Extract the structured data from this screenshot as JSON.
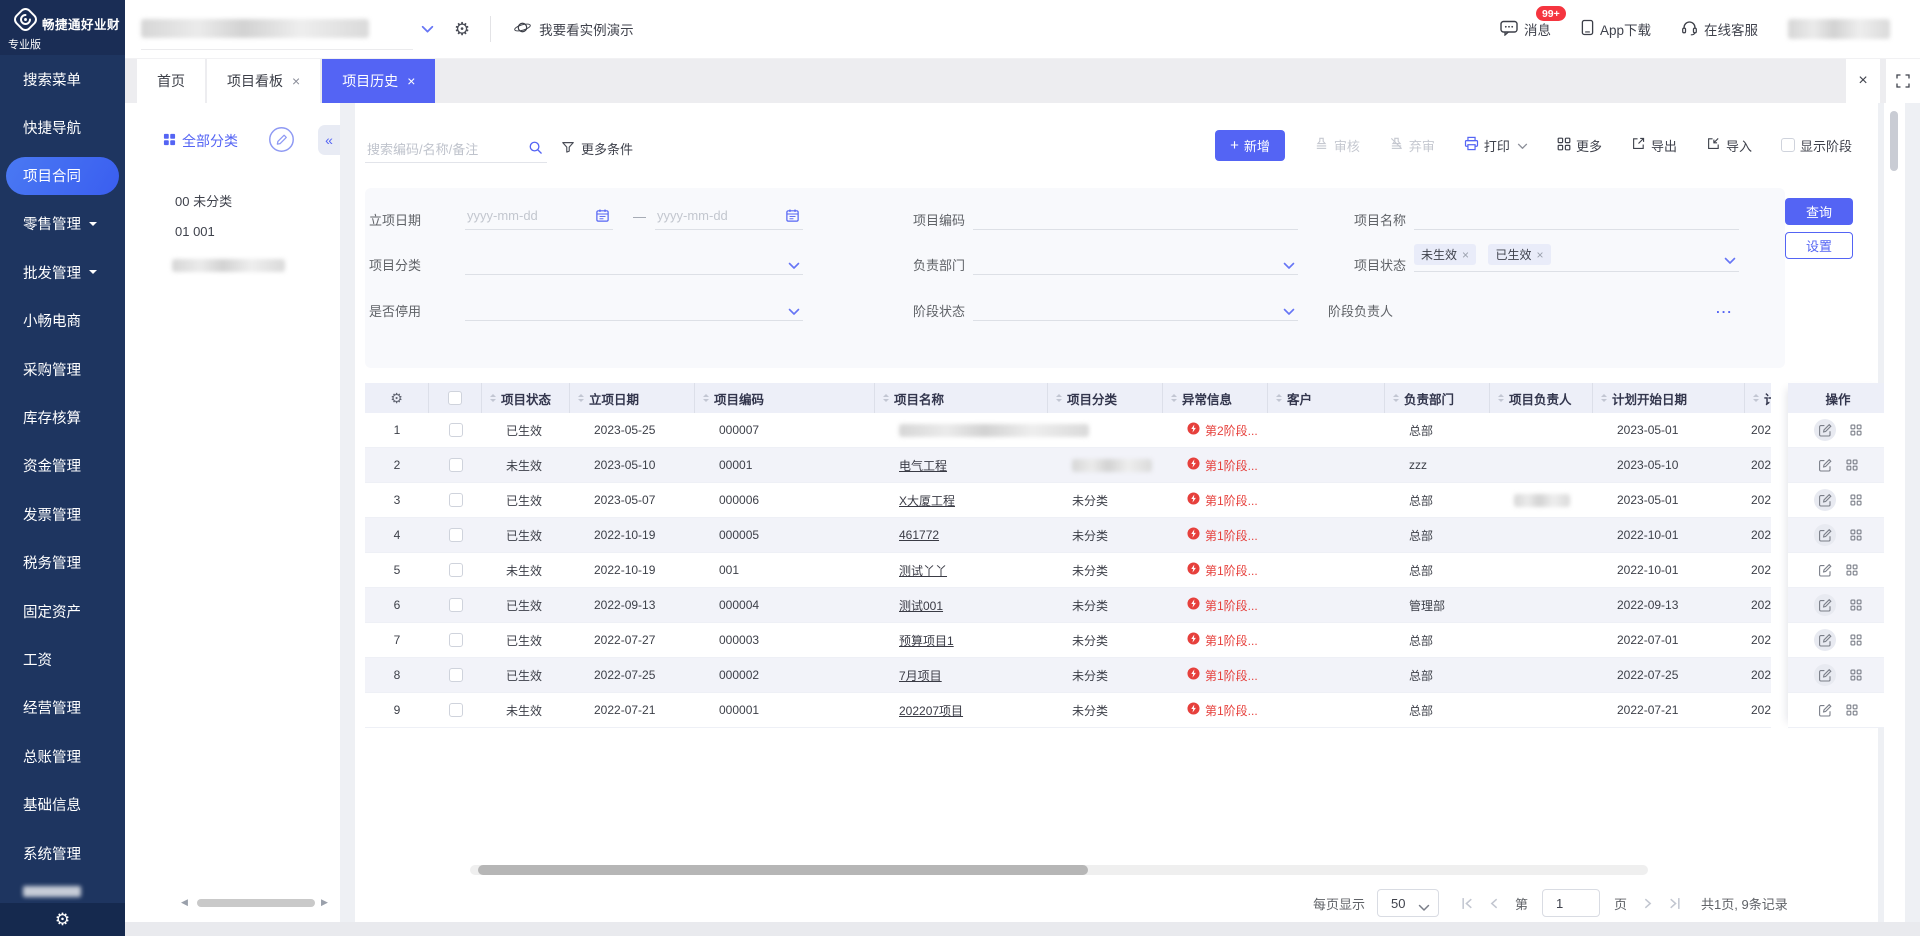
{
  "brand": {
    "name": "畅捷通好业财",
    "edition": "专业版"
  },
  "topbar": {
    "demo_link": "我要看实例演示",
    "messages": "消息",
    "messages_badge": "99+",
    "app_download": "App下载",
    "online_service": "在线客服"
  },
  "active_tab": 2,
  "tabs": [
    {
      "key": "home",
      "label": "首页",
      "closable": false
    },
    {
      "key": "project-board",
      "label": "项目看板",
      "closable": true
    },
    {
      "key": "project-history",
      "label": "项目历史",
      "closable": true
    }
  ],
  "sidebar": {
    "items": [
      {
        "key": "search-menu",
        "label": "搜索菜单"
      },
      {
        "key": "quick-nav",
        "label": "快捷导航"
      },
      {
        "key": "project-contract",
        "label": "项目合同",
        "active": true
      },
      {
        "key": "retail",
        "label": "零售管理",
        "caret": true
      },
      {
        "key": "wholesale",
        "label": "批发管理",
        "caret": true
      },
      {
        "key": "ecommerce",
        "label": "小畅电商"
      },
      {
        "key": "purchase",
        "label": "采购管理"
      },
      {
        "key": "inventory",
        "label": "库存核算"
      },
      {
        "key": "funds",
        "label": "资金管理"
      },
      {
        "key": "invoice",
        "label": "发票管理"
      },
      {
        "key": "tax",
        "label": "税务管理"
      },
      {
        "key": "fixed-assets",
        "label": "固定资产"
      },
      {
        "key": "payroll",
        "label": "工资"
      },
      {
        "key": "operation",
        "label": "经营管理"
      },
      {
        "key": "general-ledger",
        "label": "总账管理"
      },
      {
        "key": "base-info",
        "label": "基础信息"
      },
      {
        "key": "system",
        "label": "系统管理"
      }
    ]
  },
  "category_panel": {
    "title": "全部分类",
    "items": [
      {
        "label": "00 未分类"
      },
      {
        "label": "01 001"
      },
      {
        "blur": true
      }
    ]
  },
  "search": {
    "placeholder": "搜索编码/名称/备注",
    "more_conditions": "更多条件"
  },
  "toolbar": {
    "add": "新增",
    "audit": "审核",
    "abandon": "弃审",
    "print": "打印",
    "more": "更多",
    "export": "导出",
    "import": "导入",
    "show_stage": "显示阶段"
  },
  "filters": {
    "query": "查询",
    "setup": "设置",
    "date_label": "立项日期",
    "date_placeholder": "yyyy-mm-dd",
    "code_label": "项目编码",
    "name_label": "项目名称",
    "category_label": "项目分类",
    "dept_label": "负责部门",
    "status_label": "项目状态",
    "status_tags": [
      "未生效",
      "已生效"
    ],
    "disabled_label": "是否停用",
    "stage_status_label": "阶段状态",
    "stage_owner_label": "阶段负责人"
  },
  "table": {
    "columns": {
      "status": "项目状态",
      "date": "立项日期",
      "code": "项目编码",
      "name": "项目名称",
      "category": "项目分类",
      "exception": "异常信息",
      "customer": "客户",
      "dept": "负责部门",
      "owner": "项目负责人",
      "start": "计划开始日期",
      "end": "计",
      "op": "操作"
    },
    "rows": [
      {
        "no": "1",
        "status": "已生效",
        "date": "2023-05-25",
        "code": "000007",
        "name": "",
        "name_blur": true,
        "category": "",
        "exception": "第2阶段...",
        "customer": "",
        "dept": "总部",
        "owner": "",
        "start": "2023-05-01",
        "end": "202",
        "muted_edit": true
      },
      {
        "no": "2",
        "status": "未生效",
        "date": "2023-05-10",
        "code": "00001",
        "name": "电气工程",
        "category": "",
        "category_blur": true,
        "exception": "第1阶段...",
        "customer": "",
        "dept": "zzz",
        "owner": "",
        "start": "2023-05-10",
        "end": "202",
        "muted_edit": false
      },
      {
        "no": "3",
        "status": "已生效",
        "date": "2023-05-07",
        "code": "000006",
        "name": "X大厦工程",
        "category": "未分类",
        "exception": "第1阶段...",
        "customer": "",
        "dept": "总部",
        "owner": "",
        "owner_blur": true,
        "start": "2023-05-01",
        "end": "202",
        "muted_edit": true
      },
      {
        "no": "4",
        "status": "已生效",
        "date": "2022-10-19",
        "code": "000005",
        "name": "461772",
        "category": "未分类",
        "exception": "第1阶段...",
        "customer": "",
        "dept": "总部",
        "owner": "",
        "start": "2022-10-01",
        "end": "202",
        "muted_edit": true
      },
      {
        "no": "5",
        "status": "未生效",
        "date": "2022-10-19",
        "code": "001",
        "name": "测试丫丫",
        "category": "未分类",
        "exception": "第1阶段...",
        "customer": "",
        "dept": "总部",
        "owner": "",
        "start": "2022-10-01",
        "end": "202",
        "muted_edit": false
      },
      {
        "no": "6",
        "status": "已生效",
        "date": "2022-09-13",
        "code": "000004",
        "name": "测试001",
        "category": "未分类",
        "exception": "第1阶段...",
        "customer": "",
        "dept": "管理部",
        "owner": "",
        "start": "2022-09-13",
        "end": "202",
        "muted_edit": true
      },
      {
        "no": "7",
        "status": "已生效",
        "date": "2022-07-27",
        "code": "000003",
        "name": "预算项目1",
        "category": "未分类",
        "exception": "第1阶段...",
        "customer": "",
        "dept": "总部",
        "owner": "",
        "start": "2022-07-01",
        "end": "202",
        "muted_edit": true
      },
      {
        "no": "8",
        "status": "已生效",
        "date": "2022-07-25",
        "code": "000002",
        "name": "7月项目",
        "category": "未分类",
        "exception": "第1阶段...",
        "customer": "",
        "dept": "总部",
        "owner": "",
        "start": "2022-07-25",
        "end": "202",
        "muted_edit": true
      },
      {
        "no": "9",
        "status": "未生效",
        "date": "2022-07-21",
        "code": "000001",
        "name": "202207项目",
        "category": "未分类",
        "exception": "第1阶段...",
        "customer": "",
        "dept": "总部",
        "owner": "",
        "start": "2022-07-21",
        "end": "202",
        "muted_edit": false
      }
    ]
  },
  "pagination": {
    "per_page_label": "每页显示",
    "per_page": "50",
    "page_prefix": "第",
    "page": "1",
    "page_suffix": "页",
    "summary": "共1页, 9条记录"
  },
  "colors": {
    "accent": "#5464f4",
    "danger": "#e6403c",
    "sidebar_bg": "#1e3560"
  }
}
